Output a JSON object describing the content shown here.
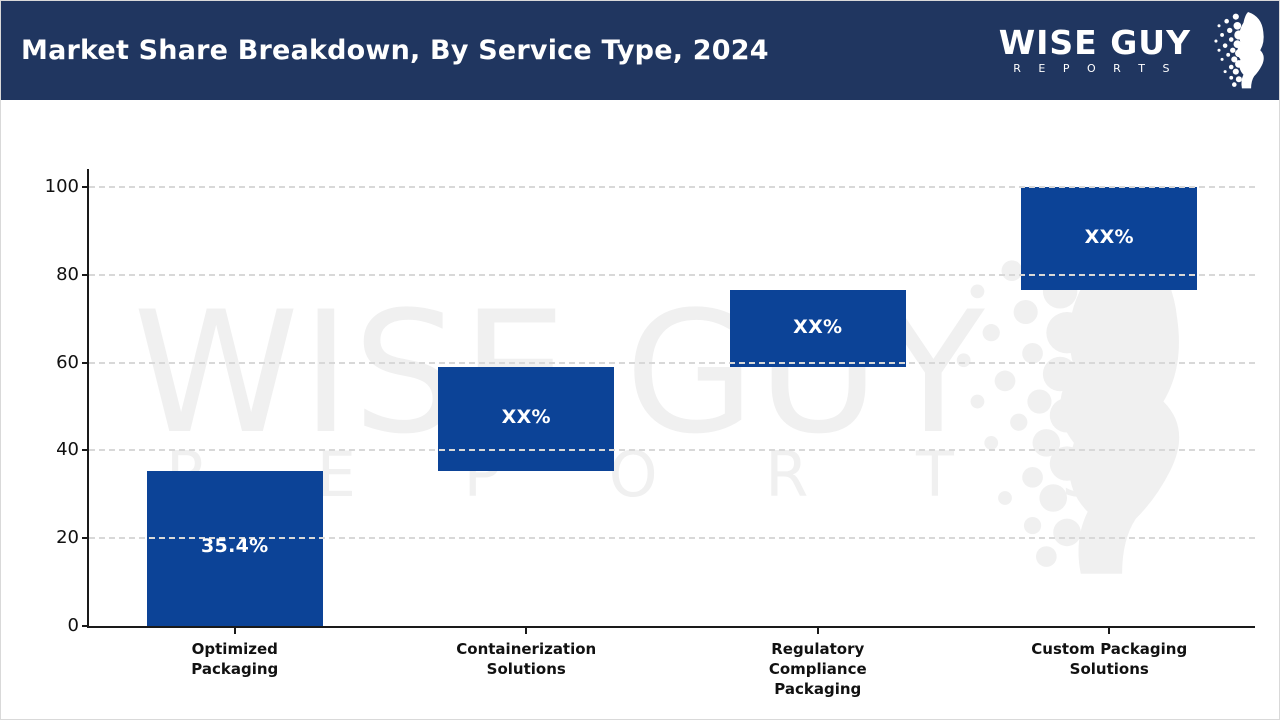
{
  "header": {
    "title": "Market Share Breakdown, By Service Type, 2024",
    "logo": {
      "wordmark": "WISE GUY",
      "subtitle": "R E P O R T S"
    }
  },
  "watermark": {
    "wordmark": "WISE GUY",
    "subtitle": "R E P O R T S"
  },
  "chart_data": {
    "type": "bar",
    "subtype": "waterfall",
    "title": "Market Share Breakdown, By Service Type, 2024",
    "categories": [
      "Optimized\nPackaging",
      "Containerization\nSolutions",
      "Regulatory\nCompliance\nPackaging",
      "Custom Packaging\nSolutions"
    ],
    "segments": [
      {
        "category": "Optimized Packaging",
        "start": 0,
        "end": 35.4,
        "value_label": "35.4%"
      },
      {
        "category": "Containerization Solutions",
        "start": 35.4,
        "end": 59,
        "value_label": "XX%"
      },
      {
        "category": "Regulatory Compliance Packaging",
        "start": 59,
        "end": 76.5,
        "value_label": "XX%"
      },
      {
        "category": "Custom Packaging Solutions",
        "start": 76.5,
        "end": 100,
        "value_label": "XX%"
      }
    ],
    "xlabel": "",
    "ylabel": "",
    "yticks": [
      0,
      20,
      40,
      60,
      80,
      100
    ],
    "ylim": [
      0,
      103.6
    ],
    "grid": true,
    "grid_style": "dashed",
    "legend": "none",
    "colors": {
      "bar": "#0c4397",
      "bar_label": "#ffffff",
      "axis": "#1a1a1a",
      "grid": "#d8d8d8",
      "tick_label": "#111111",
      "header_bg": "#203660",
      "watermark": "#f0f0f0"
    }
  }
}
